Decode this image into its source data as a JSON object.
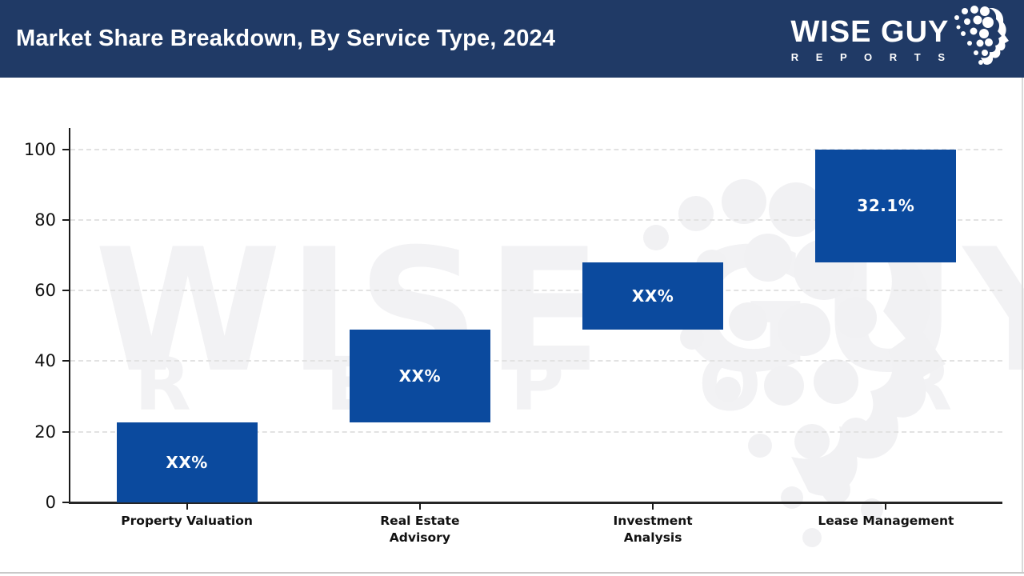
{
  "header": {
    "title": "Market Share Breakdown, By Service Type, 2024",
    "bg_color": "#203a66",
    "logo": {
      "line1": "WISE GUY",
      "line2": "R E P O R T S"
    }
  },
  "watermark": {
    "line1": "WISE GUY",
    "line2": "R E P O R T S"
  },
  "chart_data": {
    "type": "bar",
    "subtype": "waterfall-floating-bars",
    "title": "Market Share Breakdown, By Service Type, 2024",
    "categories": [
      "Property Valuation",
      "Real Estate Advisory",
      "Investment Analysis",
      "Lease Management"
    ],
    "x_tick_lines": [
      [
        "Property Valuation"
      ],
      [
        "Real Estate",
        "Advisory"
      ],
      [
        "Investment",
        "Analysis"
      ],
      [
        "Lease Management"
      ]
    ],
    "segments": [
      {
        "category": "Property Valuation",
        "start": 0,
        "end": 22.6,
        "label": "XX%"
      },
      {
        "category": "Real Estate Advisory",
        "start": 22.6,
        "end": 49.0,
        "label": "XX%"
      },
      {
        "category": "Investment Analysis",
        "start": 49.0,
        "end": 67.9,
        "label": "XX%"
      },
      {
        "category": "Lease Management",
        "start": 67.9,
        "end": 100.0,
        "label": "32.1%"
      }
    ],
    "bar_color": "#0b4a9e",
    "value_label_color": "#ffffff",
    "yticks": [
      0,
      20,
      40,
      60,
      80,
      100
    ],
    "ylim": [
      0,
      106
    ],
    "grid": "horizontal-dashed",
    "legend": "none",
    "xlabel": "",
    "ylabel": ""
  }
}
